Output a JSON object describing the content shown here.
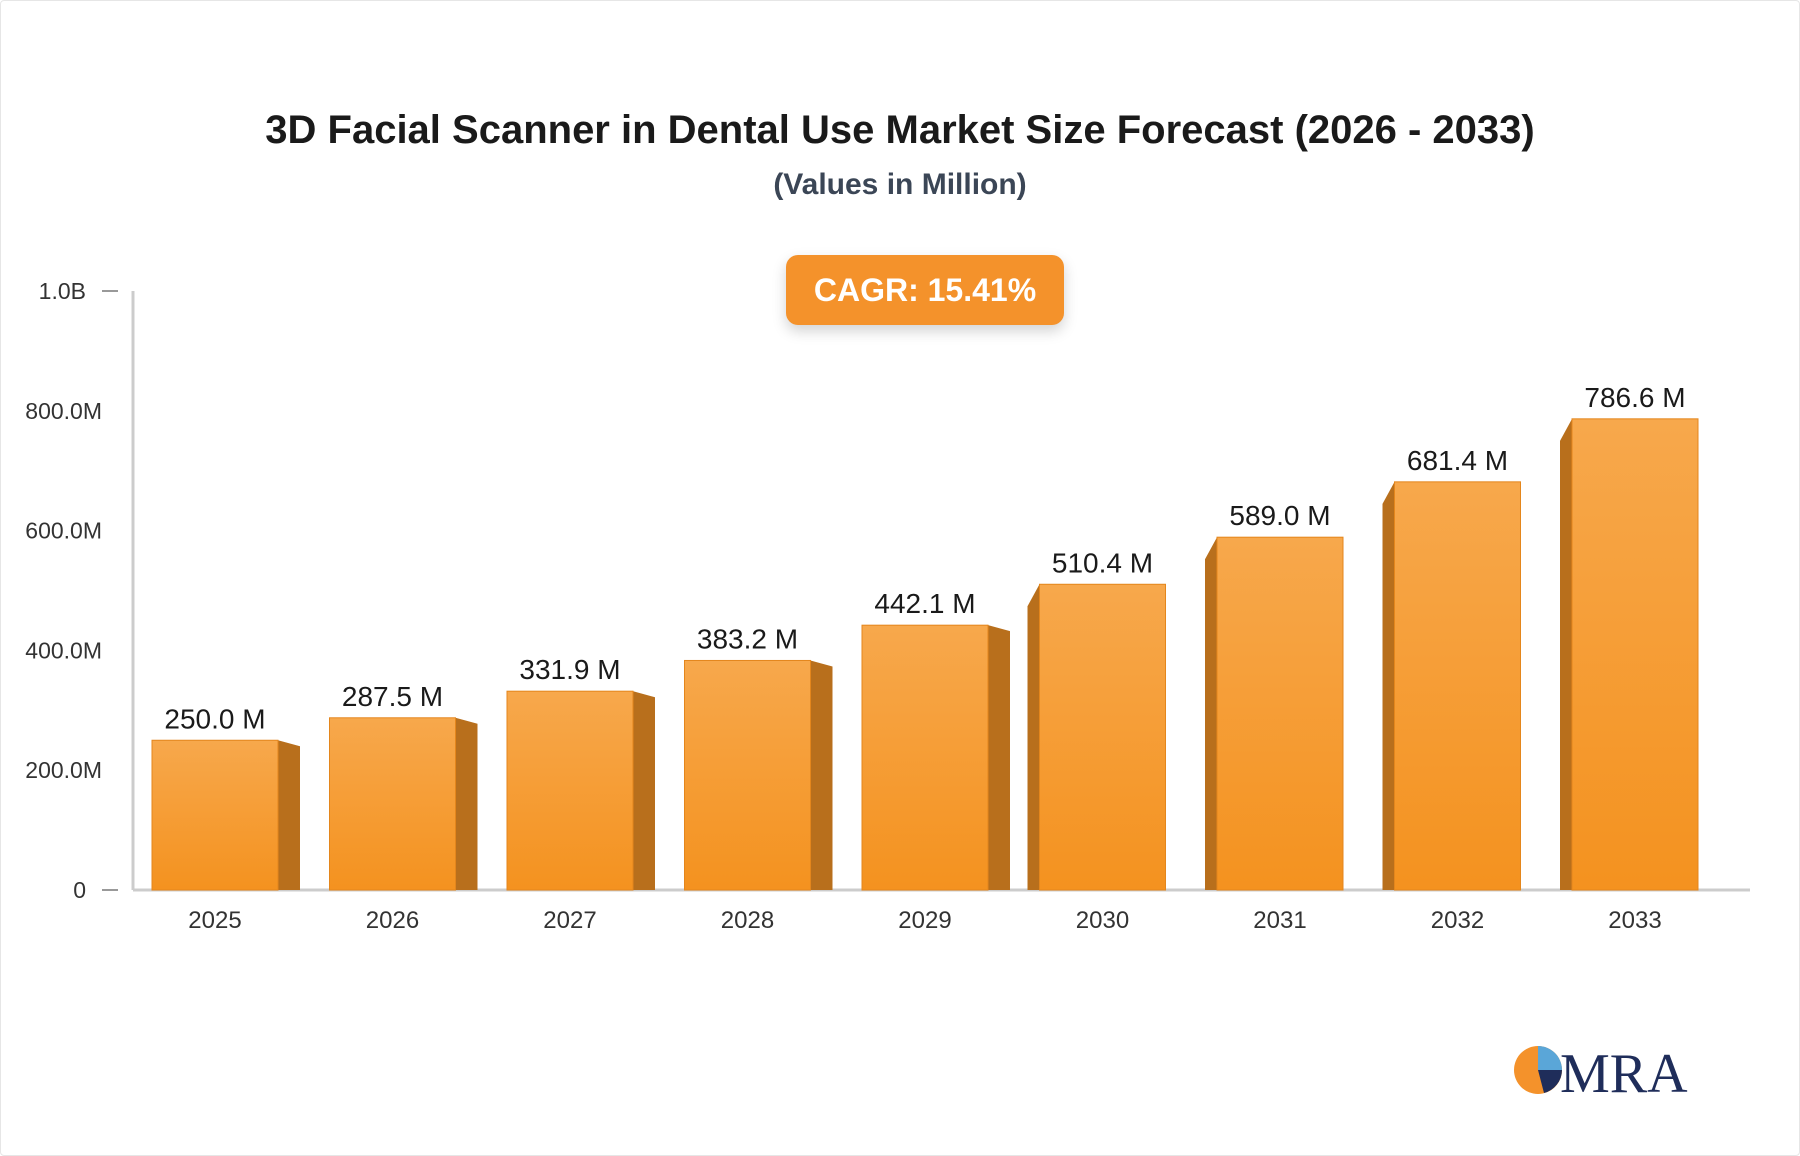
{
  "chart_data": {
    "type": "bar",
    "title": "3D Facial Scanner in Dental Use Market Size Forecast (2026 - 2033)",
    "subtitle": "(Values in Million)",
    "categories": [
      "2025",
      "2026",
      "2027",
      "2028",
      "2029",
      "2030",
      "2031",
      "2032",
      "2033"
    ],
    "values": [
      250.0,
      287.5,
      331.9,
      383.2,
      442.1,
      510.4,
      589.0,
      681.4,
      786.6
    ],
    "value_labels": [
      "250.0 M",
      "287.5 M",
      "331.9 M",
      "383.2 M",
      "442.1 M",
      "510.4 M",
      "589.0 M",
      "681.4 M",
      "786.6 M"
    ],
    "y_ticks": [
      0,
      200,
      400,
      600,
      800,
      1000
    ],
    "y_tick_labels": [
      "0",
      "200.0M",
      "400.0M",
      "600.0M",
      "800.0M",
      "1.0B"
    ],
    "ylim": [
      0,
      1000
    ],
    "grid": false,
    "legend": "none",
    "annotation": "CAGR: 15.41%",
    "colors": {
      "bar_top": "#f7a84c",
      "bar_bottom": "#f4921f",
      "bar_side": "#b86f1c",
      "axis": "#cccccc",
      "accent": "#f4922b"
    }
  },
  "logo": {
    "text": "MRA",
    "colors": {
      "orange": "#f4922b",
      "blue": "#5aa6d8",
      "navy": "#1f2d5a"
    }
  }
}
